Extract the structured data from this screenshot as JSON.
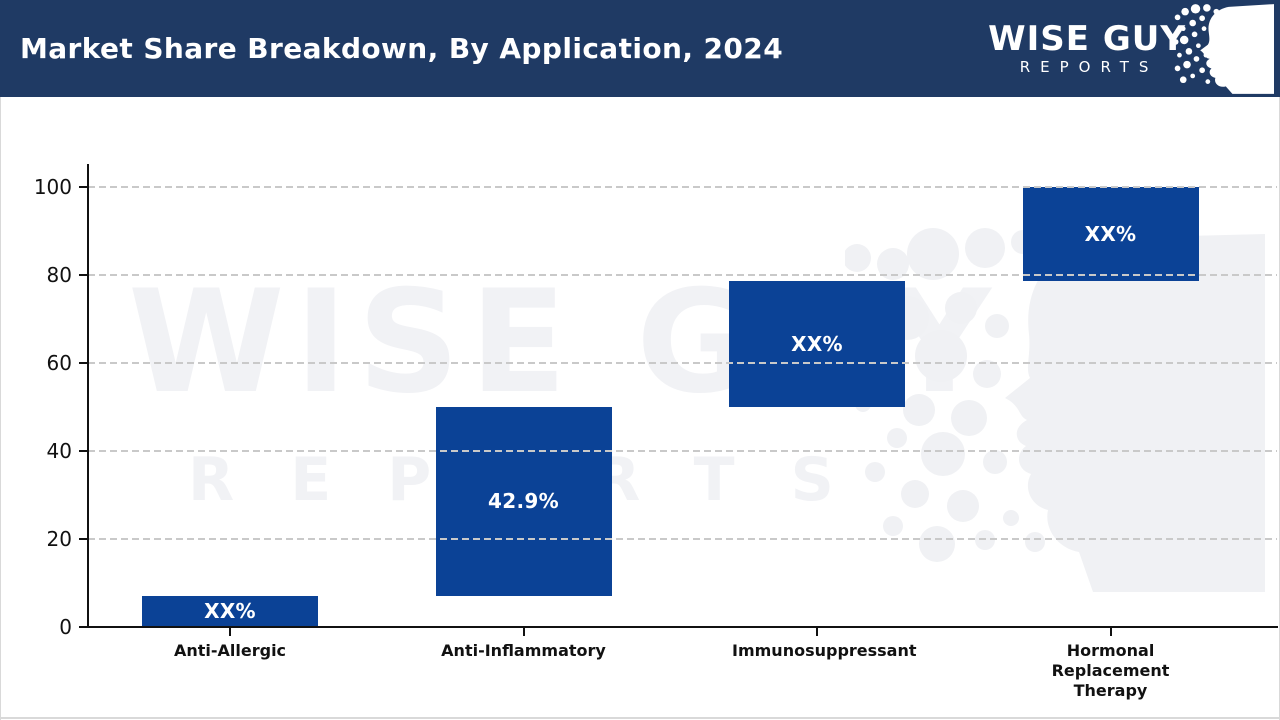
{
  "header": {
    "title": "Market Share Breakdown, By Application, 2024",
    "bg_color": "#1F3A64",
    "logo": {
      "name": "WISE GUY",
      "sub": "REPORTS"
    }
  },
  "watermark": {
    "text": "WISE GUY",
    "subtext": "REPORTS"
  },
  "chart_data": {
    "type": "bar",
    "subtype": "waterfall",
    "title": "Market Share Breakdown, By Application, 2024",
    "categories": [
      "Anti-Allergic",
      "Anti-Inflammatory",
      "Immunosuppressant",
      "Hormonal Replacement Therapy"
    ],
    "bars": [
      {
        "category": "Anti-Allergic",
        "start": 0,
        "end": 7.1,
        "label": "XX%"
      },
      {
        "category": "Anti-Inflammatory",
        "start": 7.1,
        "end": 50,
        "label": "42.9%"
      },
      {
        "category": "Immunosuppressant",
        "start": 50,
        "end": 78.6,
        "label": "XX%"
      },
      {
        "category": "Hormonal Replacement Therapy",
        "start": 78.6,
        "end": 100,
        "label": "XX%"
      }
    ],
    "ylim": [
      0,
      100
    ],
    "yticks": [
      0,
      20,
      40,
      60,
      80,
      100
    ],
    "xlabel": "",
    "ylabel": "",
    "grid": "horizontal-dashed",
    "grid_color": "#c9c9c9",
    "legend": "none",
    "bar_color": "#0B4296",
    "bar_label_color": "#FFFFFF",
    "axis_color": "#111111"
  }
}
